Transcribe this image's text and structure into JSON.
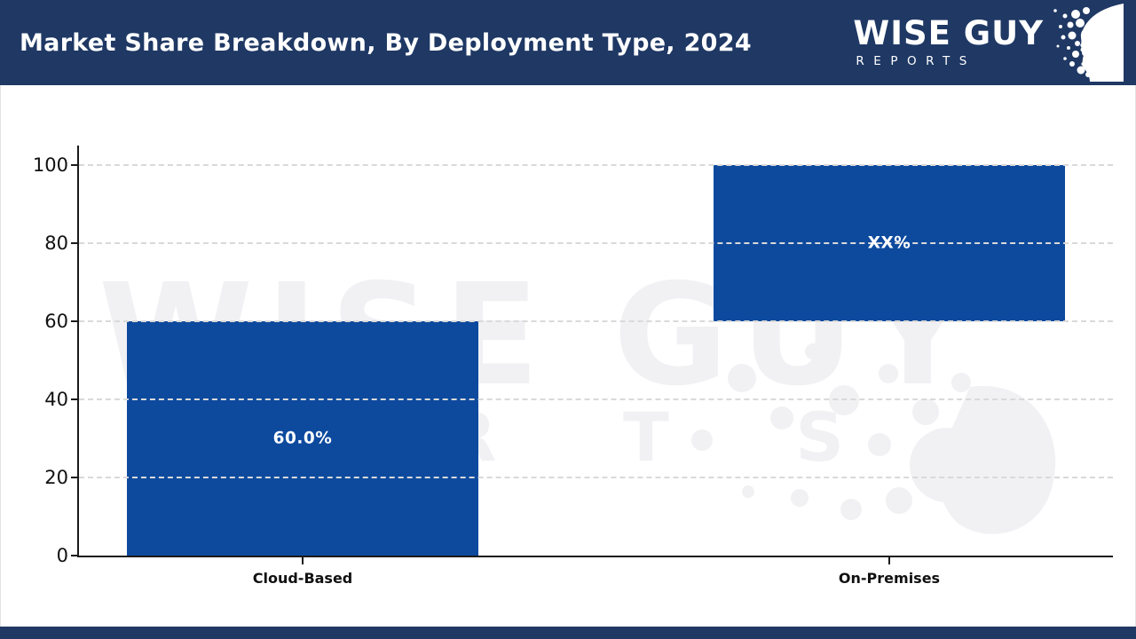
{
  "header": {
    "title": "Market Share Breakdown, By Deployment Type, 2024",
    "bg_color": "#1f3864",
    "logo": {
      "line1": "WISE GUY",
      "line2": "REPORTS"
    }
  },
  "watermark": {
    "word": "WISE GUY",
    "letters": "R T S"
  },
  "chart_data": {
    "type": "bar",
    "title": "Market Share Breakdown, By Deployment Type, 2024",
    "categories": [
      "Cloud-Based",
      "On-Premises"
    ],
    "bars": [
      {
        "category": "Cloud-Based",
        "start": 0,
        "end": 60,
        "label": "60.0%"
      },
      {
        "category": "On-Premises",
        "start": 60,
        "end": 100,
        "label": "XX%"
      }
    ],
    "ylim": [
      0,
      105
    ],
    "yticks": [
      0,
      20,
      40,
      60,
      80,
      100
    ],
    "xlabel": "",
    "ylabel": "",
    "bar_color": "#0d4a9e",
    "grid": {
      "style": "dashed",
      "color": "#d9d9d9",
      "over_bars": true
    },
    "legend": "none",
    "axis_color": "#1a1a1a"
  },
  "footer": {
    "bg_color": "#1f3864"
  }
}
